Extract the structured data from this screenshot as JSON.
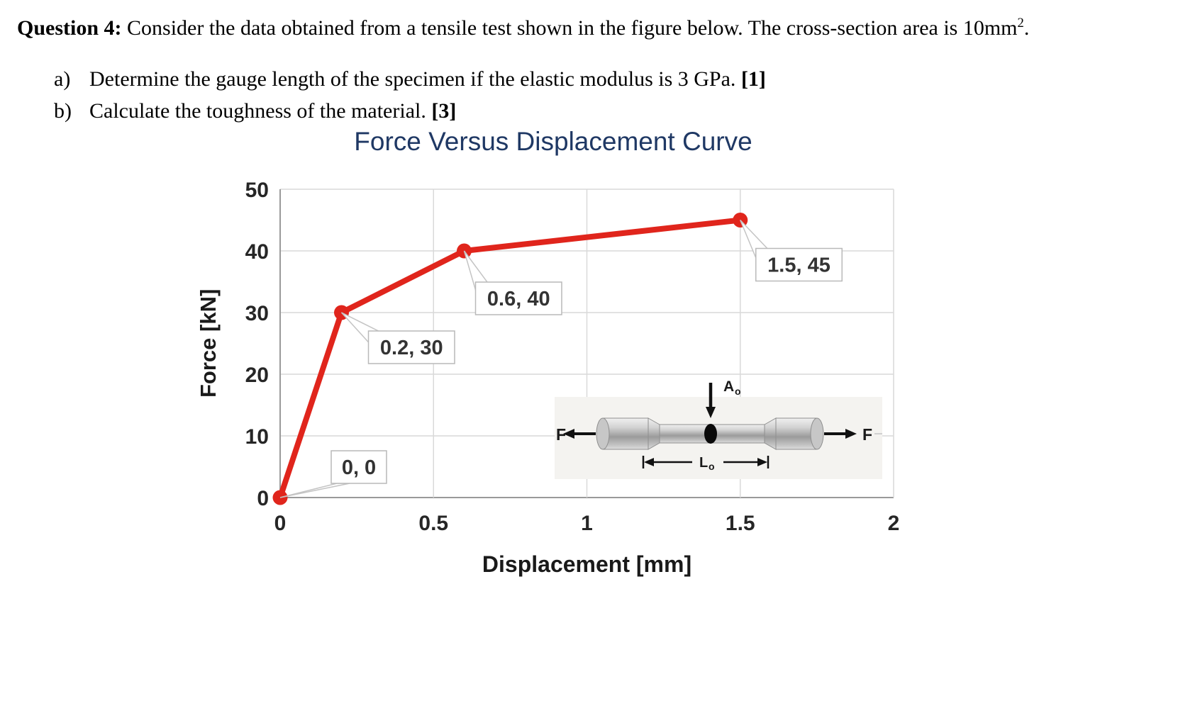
{
  "question": {
    "label": "Question 4:",
    "text": " Consider the data obtained from a tensile test shown in the figure below. The cross-section area is 10mm",
    "sup": "2",
    "text_end": ".",
    "items": [
      {
        "marker": "a)",
        "text": "Determine the gauge length of the specimen if the elastic modulus is 3 GPa.",
        "points": "[1]"
      },
      {
        "marker": "b)",
        "text": "Calculate the toughness of the material.",
        "points": "[3]"
      }
    ]
  },
  "chart_data": {
    "type": "line",
    "title": "Force Versus Displacement Curve",
    "xlabel": "Displacement [mm]",
    "ylabel": "Force [kN]",
    "x": [
      0,
      0.2,
      0.6,
      1.5
    ],
    "y": [
      0,
      30,
      40,
      45
    ],
    "point_labels": [
      "0, 0",
      "0.2, 30",
      "0.6, 40",
      "1.5, 45"
    ],
    "xlim": [
      0,
      2
    ],
    "ylim": [
      0,
      50
    ],
    "x_ticks": [
      0,
      0.5,
      1,
      1.5,
      2
    ],
    "x_tick_labels": [
      "0",
      "0.5",
      "1",
      "1.5",
      "2"
    ],
    "y_ticks": [
      0,
      10,
      20,
      30,
      40,
      50
    ],
    "grid": true,
    "legend": "none",
    "line_color": "#e0251c",
    "title_color": "#1f3864"
  },
  "specimen": {
    "area_label": "A",
    "area_sub": "o",
    "force_left": "F",
    "force_right": "F",
    "length_label": "L",
    "length_sub": "o"
  }
}
